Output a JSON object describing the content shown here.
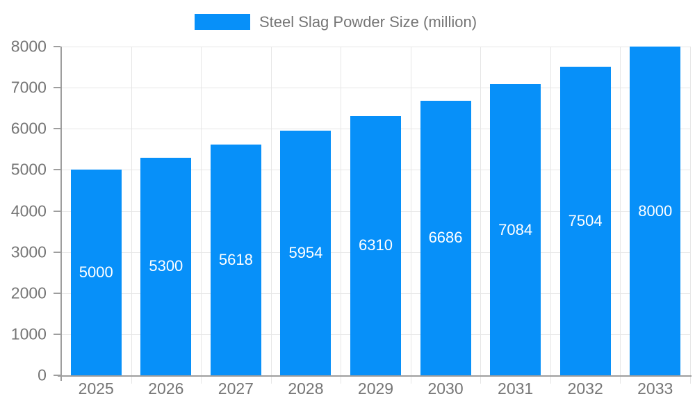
{
  "chart_data": {
    "type": "bar",
    "title": "Steel Slag Powder Size (million)",
    "legend_position": "top-center",
    "categories": [
      "2025",
      "2026",
      "2027",
      "2028",
      "2029",
      "2030",
      "2031",
      "2032",
      "2033"
    ],
    "values": [
      5000,
      5300,
      5618,
      5954,
      6310,
      6686,
      7084,
      7504,
      8000
    ],
    "bar_value_labels": [
      "5000",
      "5300",
      "5618",
      "5954",
      "6310",
      "6686",
      "7084",
      "7504",
      "8000"
    ],
    "xlabel": "",
    "ylabel": "",
    "ylim": [
      0,
      8000
    ],
    "y_ticks": [
      0,
      1000,
      2000,
      3000,
      4000,
      5000,
      6000,
      7000,
      8000
    ],
    "grid": "on"
  },
  "colors": {
    "bar_fill": "#0790f9",
    "legend_swatch": "#0790f9",
    "axis_line": "#9e9e9e",
    "gridline": "#e6e6e6",
    "axis_text": "#757575",
    "legend_text": "#757575",
    "bar_label_text": "#ffffff",
    "background": "#ffffff"
  }
}
